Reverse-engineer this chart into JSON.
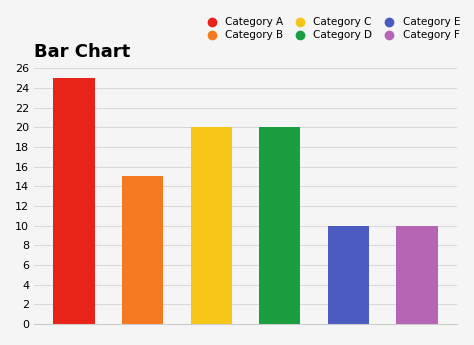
{
  "title": "Bar Chart",
  "categories": [
    "Category A",
    "Category B",
    "Category C",
    "Category D",
    "Category E",
    "Category F"
  ],
  "values": [
    25,
    15,
    20,
    20,
    10,
    10
  ],
  "bar_colors": [
    "#e8231a",
    "#f47920",
    "#f5c518",
    "#1a9e3f",
    "#4b5bbf",
    "#b565b3"
  ],
  "legend_colors": [
    "#e8231a",
    "#f47920",
    "#f5c518",
    "#1a9e3f",
    "#4b5bbf",
    "#b565b3"
  ],
  "ylim": [
    0,
    26
  ],
  "yticks": [
    0,
    2,
    4,
    6,
    8,
    10,
    12,
    14,
    16,
    18,
    20,
    22,
    24,
    26
  ],
  "title_fontsize": 13,
  "tick_fontsize": 8,
  "legend_fontsize": 7.5,
  "background_color": "#f5f5f5",
  "bar_width": 0.6
}
